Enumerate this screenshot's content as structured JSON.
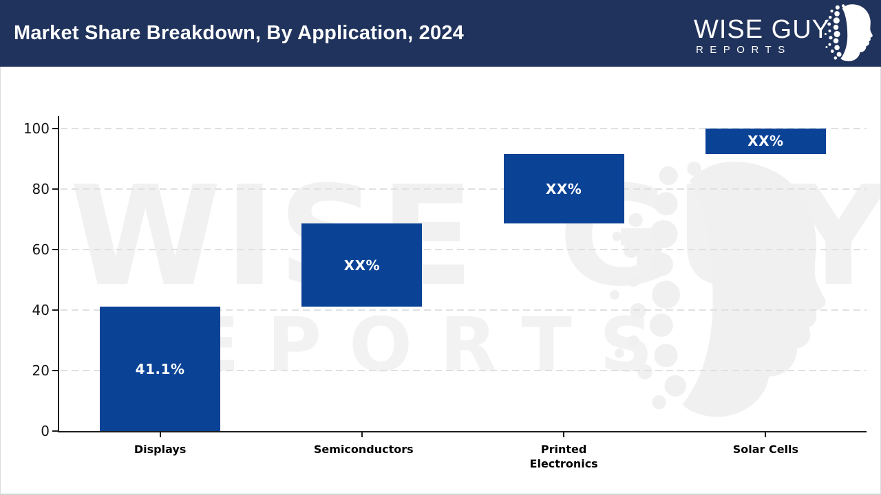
{
  "header": {
    "title": "Market Share Breakdown, By Application, 2024",
    "bg_color": "#20335c",
    "logo": {
      "line1": "WISE GUY",
      "line2": "REPORTS"
    }
  },
  "watermark": {
    "line1": "WISE GUY",
    "line2": "REPORTS"
  },
  "chart_data": {
    "type": "bar",
    "subtype": "waterfall",
    "title": "Market Share Breakdown, By Application, 2024",
    "categories": [
      "Displays",
      "Semiconductors",
      "Printed Electronics",
      "Solar Cells"
    ],
    "segments": [
      {
        "label": "Displays",
        "start": 0,
        "end": 41.1,
        "value_label": "41.1%"
      },
      {
        "label": "Semiconductors",
        "start": 41.1,
        "end": 68.6,
        "value_label": "XX%"
      },
      {
        "label": "Printed Electronics",
        "start": 68.6,
        "end": 91.6,
        "value_label": "XX%"
      },
      {
        "label": "Solar Cells",
        "start": 91.6,
        "end": 100,
        "value_label": "XX%"
      }
    ],
    "ylim": [
      0,
      100
    ],
    "yticks": [
      0,
      20,
      40,
      60,
      80,
      100
    ],
    "xlabel": "",
    "ylabel": "",
    "grid": "horizontal-dashed",
    "legend": "none",
    "bar_color": "#0a4296",
    "value_label_color": "#ffffff"
  }
}
